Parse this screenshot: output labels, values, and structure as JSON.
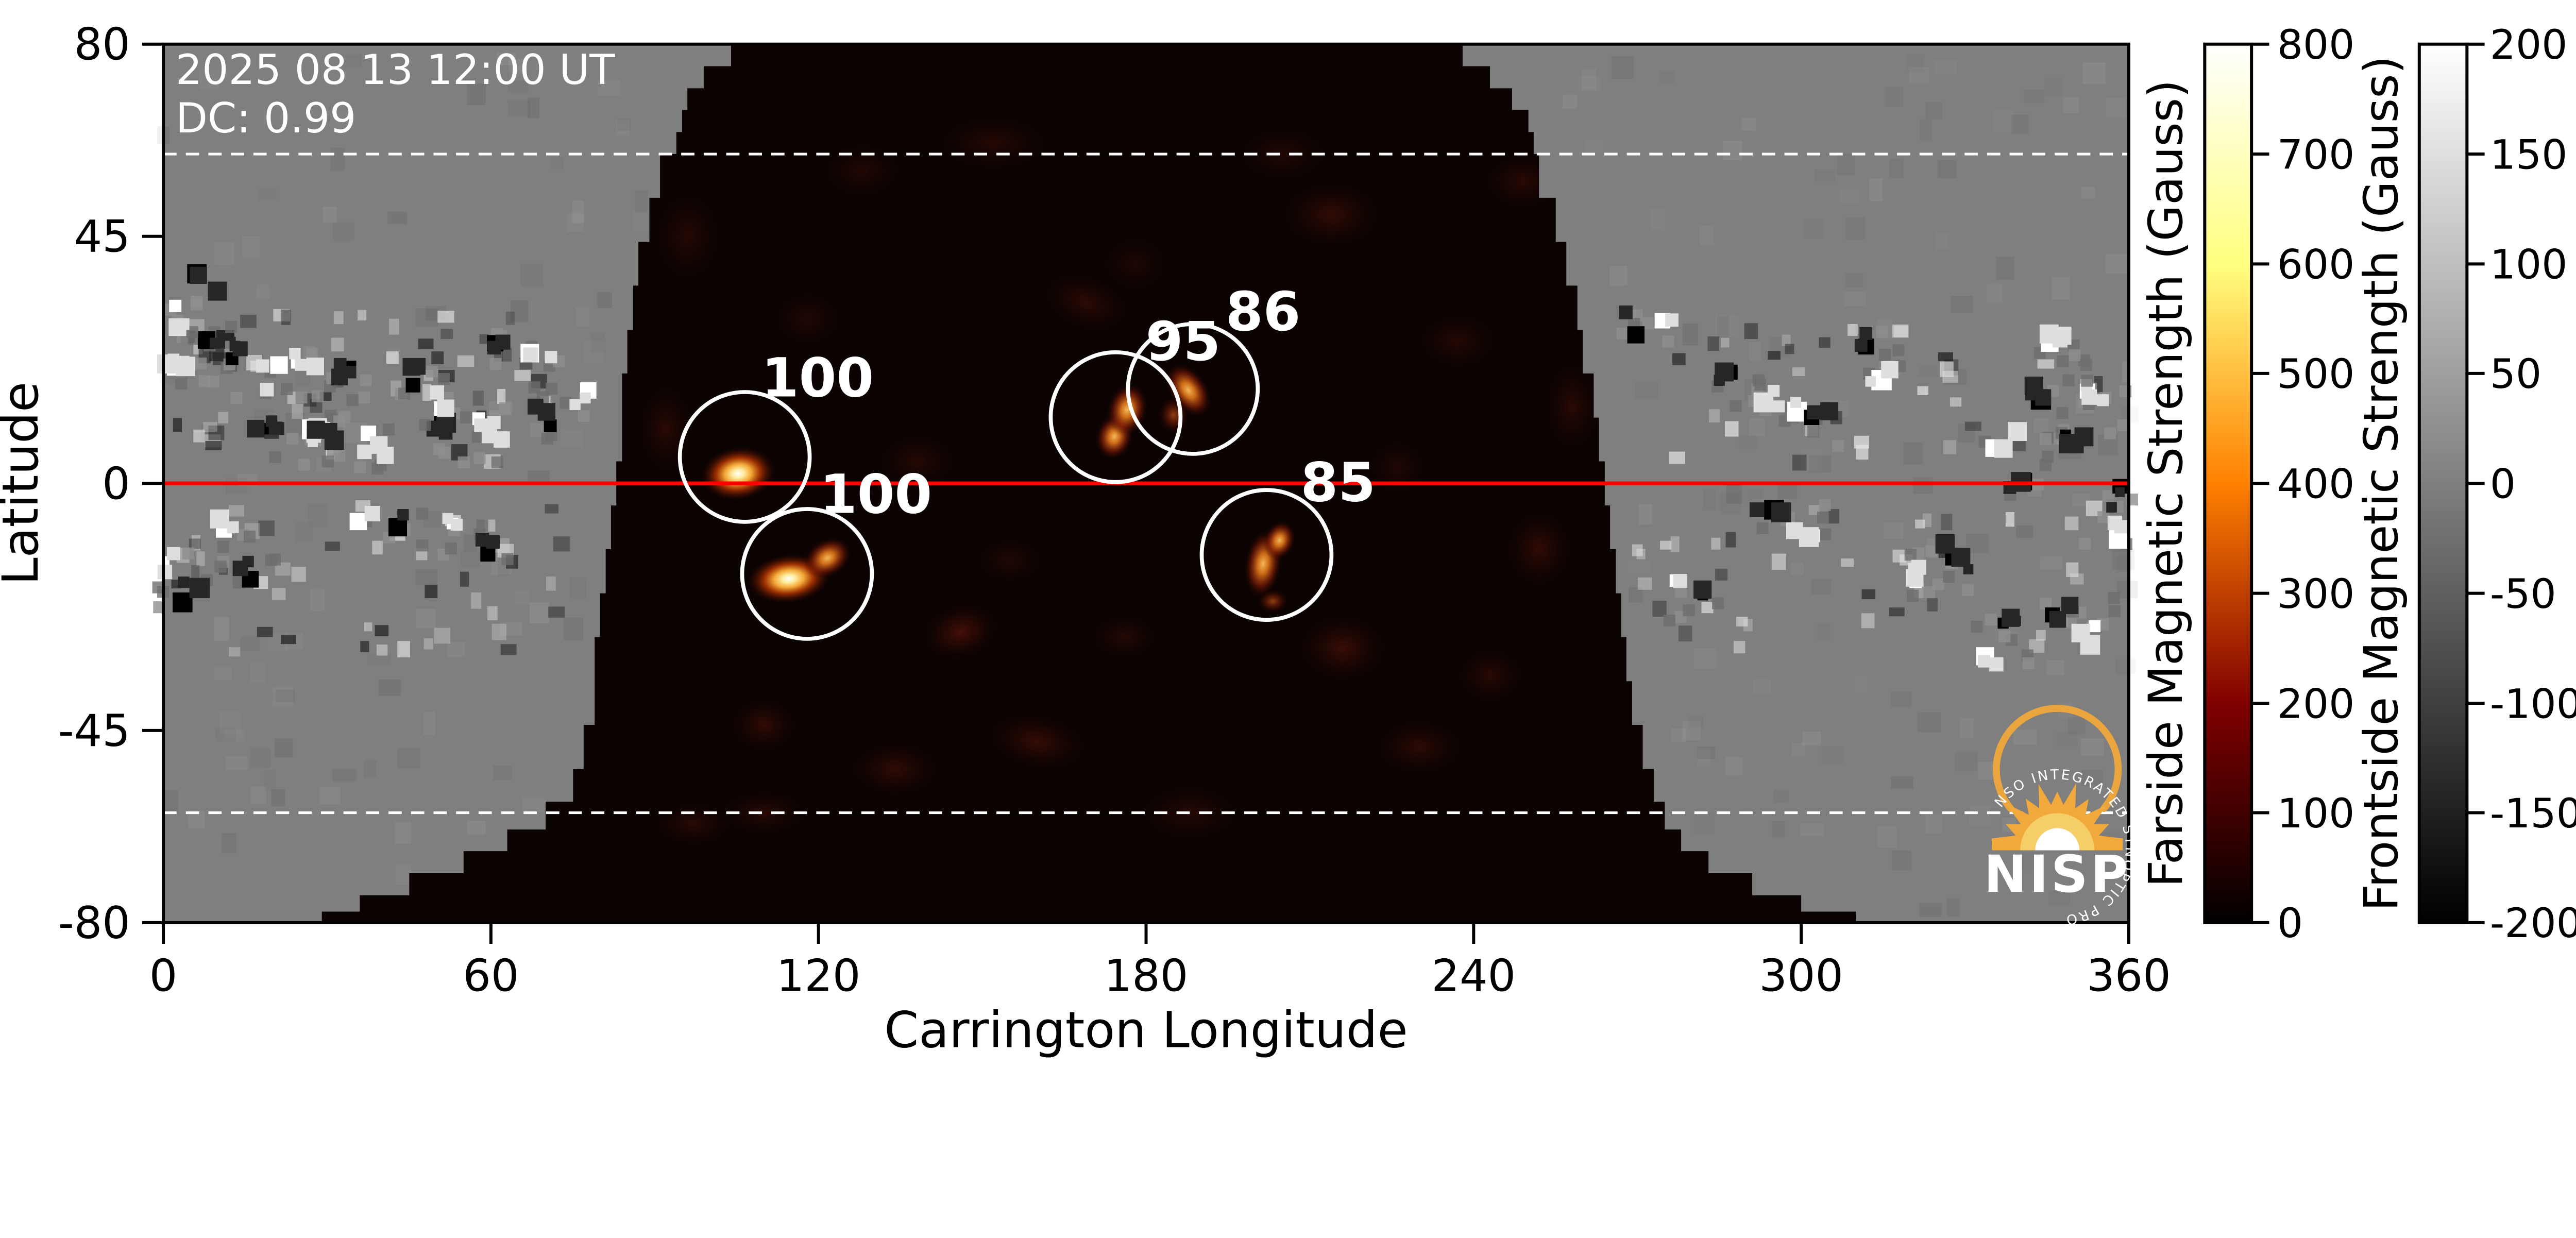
{
  "header": {
    "timestamp": "2025 08 13 12:00 UT",
    "dc": "DC: 0.99"
  },
  "logo": {
    "name": "NISP",
    "ring_text": "NSO INTEGRATED SYNOPTIC PROGRAM",
    "gold": "#EAA53E",
    "flame": "#F1A93B",
    "inner": "#F6CE68",
    "core": "#ffffff"
  },
  "chart_data": {
    "type": "heatmap",
    "title": "",
    "xlabel": "Carrington Longitude",
    "ylabel": "Latitude",
    "xlim": [
      0,
      360
    ],
    "ylim": [
      -80,
      80
    ],
    "x_ticks": [
      0,
      60,
      120,
      180,
      240,
      300,
      360
    ],
    "y_ticks": [
      80,
      45,
      0,
      -45,
      -80
    ],
    "equator_line": {
      "lat": 0,
      "color": "#fe0000"
    },
    "dashed_lines_lat": [
      60,
      -60
    ],
    "frontside_gray": "#7f7f7f",
    "farside_base": "#0b0302",
    "farside_colorbar": {
      "title": "Farside Magnetic Strength (Gauss)",
      "range": [
        0,
        800
      ],
      "ticks": [
        0,
        100,
        200,
        300,
        400,
        500,
        600,
        700,
        800
      ],
      "colormap": "afmhot",
      "stops": [
        [
          0,
          "#000000"
        ],
        [
          0.125,
          "#400000"
        ],
        [
          0.25,
          "#800000"
        ],
        [
          0.375,
          "#bf4000"
        ],
        [
          0.5,
          "#ff8000"
        ],
        [
          0.625,
          "#ffbf40"
        ],
        [
          0.75,
          "#ffff80"
        ],
        [
          0.875,
          "#ffffbf"
        ],
        [
          1,
          "#ffffff"
        ]
      ]
    },
    "frontside_colorbar": {
      "title": "Frontside Magnetic Strength (Gauss)",
      "range": [
        -200,
        200
      ],
      "ticks": [
        -200,
        -150,
        -100,
        -50,
        0,
        50,
        100,
        150,
        200
      ],
      "colormap": "grayscale",
      "stops": [
        [
          0,
          "#000000"
        ],
        [
          0.5,
          "#7f7f7f"
        ],
        [
          1,
          "#ffffff"
        ]
      ]
    },
    "active_regions": [
      {
        "label": "100",
        "lon": 106.5,
        "lat": 4.8,
        "label_lon": 119.8,
        "label_lat": 19.2
      },
      {
        "label": "100",
        "lon": 117.9,
        "lat": -16.5,
        "label_lon": 130.5,
        "label_lat": -2.0
      },
      {
        "label": "95",
        "lon": 174.4,
        "lat": 12.1,
        "label_lon": 186.8,
        "label_lat": 25.8
      },
      {
        "label": "86",
        "lon": 188.6,
        "lat": 17.2,
        "label_lon": 201.4,
        "label_lat": 31.3
      },
      {
        "label": "85",
        "lon": 202.1,
        "lat": -13.0,
        "label_lon": 215.2,
        "label_lat": 0.2
      }
    ],
    "circle_radius_px": 147,
    "farside_boundary": [
      [
        80,
        111,
        238
      ],
      [
        76,
        104,
        243
      ],
      [
        72,
        99,
        247
      ],
      [
        68,
        96,
        250
      ],
      [
        64,
        95,
        251
      ],
      [
        60,
        94,
        252
      ],
      [
        52,
        91,
        255
      ],
      [
        44,
        89,
        257
      ],
      [
        36,
        87,
        259
      ],
      [
        28,
        86,
        260
      ],
      [
        20,
        85,
        262
      ],
      [
        12,
        84,
        263
      ],
      [
        4,
        84,
        264
      ],
      [
        -4,
        83,
        265
      ],
      [
        -12,
        82,
        266
      ],
      [
        -20,
        81,
        267
      ],
      [
        -28,
        80,
        268
      ],
      [
        -36,
        79,
        269
      ],
      [
        -44,
        79,
        271
      ],
      [
        -52,
        77,
        273
      ],
      [
        -58,
        75,
        275
      ],
      [
        -63,
        70,
        278
      ],
      [
        -67,
        63,
        283
      ],
      [
        -71,
        55,
        291
      ],
      [
        -75,
        45,
        300
      ],
      [
        -78,
        36,
        310
      ],
      [
        -80,
        29,
        318
      ]
    ],
    "bright_lobes": [
      [
        105.3,
        1.8,
        6.8,
        4.8,
        -8,
        "g-core"
      ],
      [
        114.6,
        -17.4,
        7.6,
        4.4,
        -6,
        "g-core"
      ],
      [
        121.6,
        -13.6,
        4.6,
        3.4,
        -30,
        "g-mid"
      ],
      [
        174.2,
        8.5,
        3.4,
        4.2,
        15,
        "g-mid"
      ],
      [
        176.5,
        13.4,
        3.6,
        4.8,
        15,
        "g-mid"
      ],
      [
        187.8,
        17.0,
        3.4,
        5.4,
        -35,
        "g-mid"
      ],
      [
        185.0,
        12.5,
        2.8,
        3.4,
        0,
        "g-dim"
      ],
      [
        201.4,
        -14.6,
        3.4,
        6.2,
        8,
        "g-mid"
      ],
      [
        204.4,
        -10.4,
        3.6,
        2.8,
        -70,
        "g-mid"
      ],
      [
        203.2,
        -21.5,
        2.8,
        2.2,
        0,
        "g-dim"
      ]
    ],
    "faint_blobs": [
      [
        214,
        49,
        9,
        6,
        0,
        0.5
      ],
      [
        249,
        55,
        7,
        5,
        0,
        0.4
      ],
      [
        237,
        26,
        7,
        5,
        0,
        0.35
      ],
      [
        169,
        33,
        8,
        5,
        20,
        0.45
      ],
      [
        152,
        62,
        10,
        5,
        0,
        0.35
      ],
      [
        128,
        57,
        7,
        5,
        0,
        0.3
      ],
      [
        96,
        45,
        6,
        8,
        0,
        0.35
      ],
      [
        92,
        10,
        5,
        8,
        0,
        0.4
      ],
      [
        138,
        4,
        7,
        5,
        0,
        0.35
      ],
      [
        146,
        -27,
        7,
        5,
        -15,
        0.75
      ],
      [
        160,
        -47,
        9,
        5,
        10,
        0.55
      ],
      [
        134,
        -52,
        8,
        5,
        0,
        0.5
      ],
      [
        110,
        -44,
        6,
        5,
        0,
        0.5
      ],
      [
        97,
        -62,
        7,
        4,
        0,
        0.4
      ],
      [
        216,
        -30,
        8,
        6,
        0,
        0.6
      ],
      [
        230,
        -48,
        8,
        5,
        0,
        0.45
      ],
      [
        252,
        -12,
        6,
        7,
        0,
        0.5
      ],
      [
        258,
        14,
        5,
        8,
        0,
        0.4
      ],
      [
        188,
        -60,
        9,
        5,
        0,
        0.35
      ],
      [
        205,
        60,
        8,
        5,
        0,
        0.3
      ],
      [
        178,
        40,
        6,
        5,
        0,
        0.25
      ],
      [
        118,
        30,
        6,
        5,
        0,
        0.3
      ],
      [
        155,
        -14,
        6,
        4,
        0,
        0.3
      ],
      [
        176,
        -28,
        6,
        4,
        0,
        0.35
      ],
      [
        243,
        -35,
        6,
        5,
        0,
        0.4
      ],
      [
        110,
        -60,
        8,
        4,
        0,
        0.4
      ],
      [
        226,
        3,
        5,
        5,
        0,
        0.3
      ]
    ],
    "gradients": {
      "g-core": [
        [
          0,
          "#ffffff",
          1
        ],
        [
          0.16,
          "#ffeca0",
          1
        ],
        [
          0.36,
          "#ffb13a",
          0.95
        ],
        [
          0.6,
          "#c03a00",
          0.8
        ],
        [
          1,
          "#380400",
          0
        ]
      ],
      "g-mid": [
        [
          0,
          "#ffc35e",
          0.95
        ],
        [
          0.3,
          "#ef7f1c",
          0.85
        ],
        [
          0.65,
          "#8f2208",
          0.6
        ],
        [
          1,
          "#2c0300",
          0
        ]
      ],
      "g-dim": [
        [
          0,
          "#c65a16",
          0.7
        ],
        [
          0.5,
          "#771a05",
          0.5
        ],
        [
          1,
          "#250200",
          0
        ]
      ],
      "g-faint": [
        [
          0,
          "#8d1d0d",
          0.6
        ],
        [
          0.55,
          "#541006",
          0.35
        ],
        [
          1,
          "#1c0100",
          0
        ]
      ]
    },
    "frontside_clusters": [
      {
        "lon": 6,
        "lat": 24,
        "s": 0.9,
        "a": 150
      },
      {
        "lon": 16,
        "lat": 21,
        "s": 0.5,
        "a": 30
      },
      {
        "lon": 30,
        "lat": 21,
        "s": 0.7,
        "a": 200
      },
      {
        "lon": 24,
        "lat": 9,
        "s": 1.0,
        "a": 0
      },
      {
        "lon": 34,
        "lat": 8,
        "s": 0.8,
        "a": 10
      },
      {
        "lon": 55,
        "lat": 10,
        "s": 0.9,
        "a": 0
      },
      {
        "lon": 47,
        "lat": 17,
        "s": 0.4,
        "a": 45
      },
      {
        "lon": 13,
        "lat": -12,
        "s": 0.5,
        "a": 260
      },
      {
        "lon": 3,
        "lat": -17,
        "s": 0.4,
        "a": 240
      },
      {
        "lon": 40,
        "lat": -6,
        "s": 0.3,
        "a": 180
      },
      {
        "lon": 56,
        "lat": -9,
        "s": 0.4,
        "a": 210
      },
      {
        "lon": 66,
        "lat": 24,
        "s": 0.4,
        "a": 20
      },
      {
        "lon": 73,
        "lat": 14,
        "s": 0.5,
        "a": 340
      },
      {
        "lon": 6,
        "lat": 33,
        "s": 0.4,
        "a": 120
      },
      {
        "lon": 289,
        "lat": 18,
        "s": 0.5,
        "a": 15
      },
      {
        "lon": 301,
        "lat": 12,
        "s": 0.4,
        "a": 200
      },
      {
        "lon": 312,
        "lat": 24,
        "s": 0.5,
        "a": 60
      },
      {
        "lon": 324,
        "lat": -15,
        "s": 0.9,
        "a": 160
      },
      {
        "lon": 352,
        "lat": 13,
        "s": 1.0,
        "a": 300
      },
      {
        "lon": 345,
        "lat": 21,
        "s": 0.7,
        "a": 290
      },
      {
        "lon": 350,
        "lat": -25,
        "s": 0.5,
        "a": 45
      },
      {
        "lon": 336,
        "lat": -28,
        "s": 0.4,
        "a": 120
      },
      {
        "lon": 297,
        "lat": -8,
        "s": 0.4,
        "a": 30
      },
      {
        "lon": 271,
        "lat": 29,
        "s": 0.3,
        "a": 0
      },
      {
        "lon": 279,
        "lat": -20,
        "s": 0.3,
        "a": 200
      },
      {
        "lon": 357,
        "lat": -6,
        "s": 0.4,
        "a": 90
      },
      {
        "lon": 339,
        "lat": 4,
        "s": 0.5,
        "a": 250
      }
    ]
  }
}
